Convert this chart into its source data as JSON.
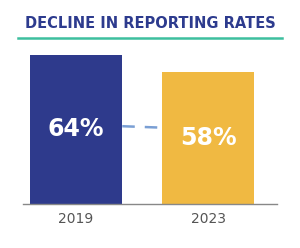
{
  "title": "DECLINE IN REPORTING RATES",
  "title_color": "#2d3b8e",
  "title_fontsize": 10.5,
  "underline_color": "#3dbf9e",
  "categories": [
    "2019",
    "2023"
  ],
  "values": [
    64,
    58
  ],
  "bar_colors": [
    "#2e3a8c",
    "#f0b942"
  ],
  "bar_labels": [
    "64%",
    "58%"
  ],
  "label_color": "#ffffff",
  "label_fontsize": 17,
  "background_color": "#ffffff",
  "xlabel_fontsize": 10,
  "xlabel_color": "#555555",
  "dashed_line_color": "#7a9fd4",
  "axline_color": "#888888"
}
